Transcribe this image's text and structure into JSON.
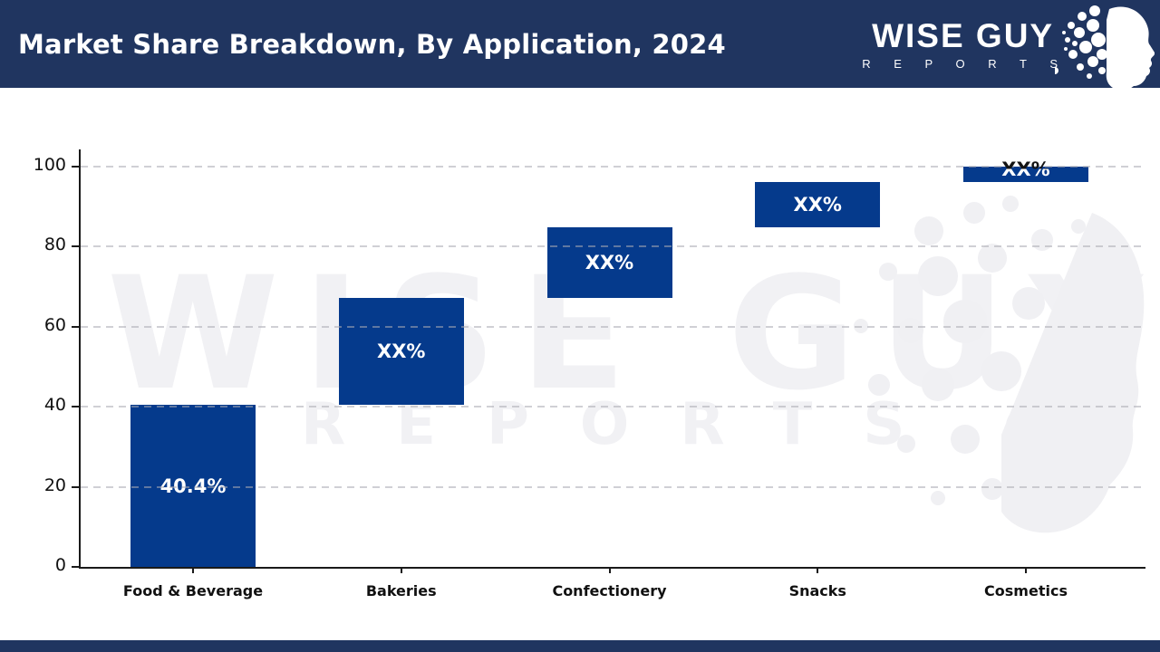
{
  "header": {
    "title": "Market Share Breakdown, By Application, 2024",
    "logo": {
      "line1": "WISE GUY",
      "line2": "R E P O R T S"
    }
  },
  "watermark": {
    "line1": "WISE GUY",
    "line2": "REPORTS"
  },
  "colors": {
    "header_bg": "#203560",
    "bar_blue": "#053a8c",
    "grid_gray": "#d9d9dc",
    "axis_black": "#1a1a1a",
    "bar_label_white": "#ffffff",
    "watermark_gray": "#f1f1f4"
  },
  "chart_data": {
    "type": "bar",
    "subtype": "waterfall",
    "title": "Market Share Breakdown, By Application, 2024",
    "categories": [
      "Food & Beverage",
      "Bakeries",
      "Confectionery",
      "Snacks",
      "Cosmetics"
    ],
    "segments": [
      {
        "category": "Food & Beverage",
        "start": 0,
        "end": 40.4,
        "value": 40.4,
        "label": "40.4%",
        "label_split": false
      },
      {
        "category": "Bakeries",
        "start": 40.4,
        "end": 67.2,
        "value": 26.8,
        "label": "XX%",
        "label_split": false
      },
      {
        "category": "Confectionery",
        "start": 67.2,
        "end": 84.8,
        "value": 17.6,
        "label": "XX%",
        "label_split": false
      },
      {
        "category": "Snacks",
        "start": 84.8,
        "end": 96.1,
        "value": 11.3,
        "label": "XX%",
        "label_split": false
      },
      {
        "category": "Cosmetics",
        "start": 96.1,
        "end": 100.0,
        "value": 3.9,
        "label": "XX%",
        "label_split": true
      }
    ],
    "yticks": [
      0,
      20,
      40,
      60,
      80,
      100
    ],
    "ylim": [
      0,
      104.3
    ],
    "xlabel": "",
    "ylabel": "",
    "grid": "horizontal-dashed-over-bars",
    "legend": "none"
  }
}
